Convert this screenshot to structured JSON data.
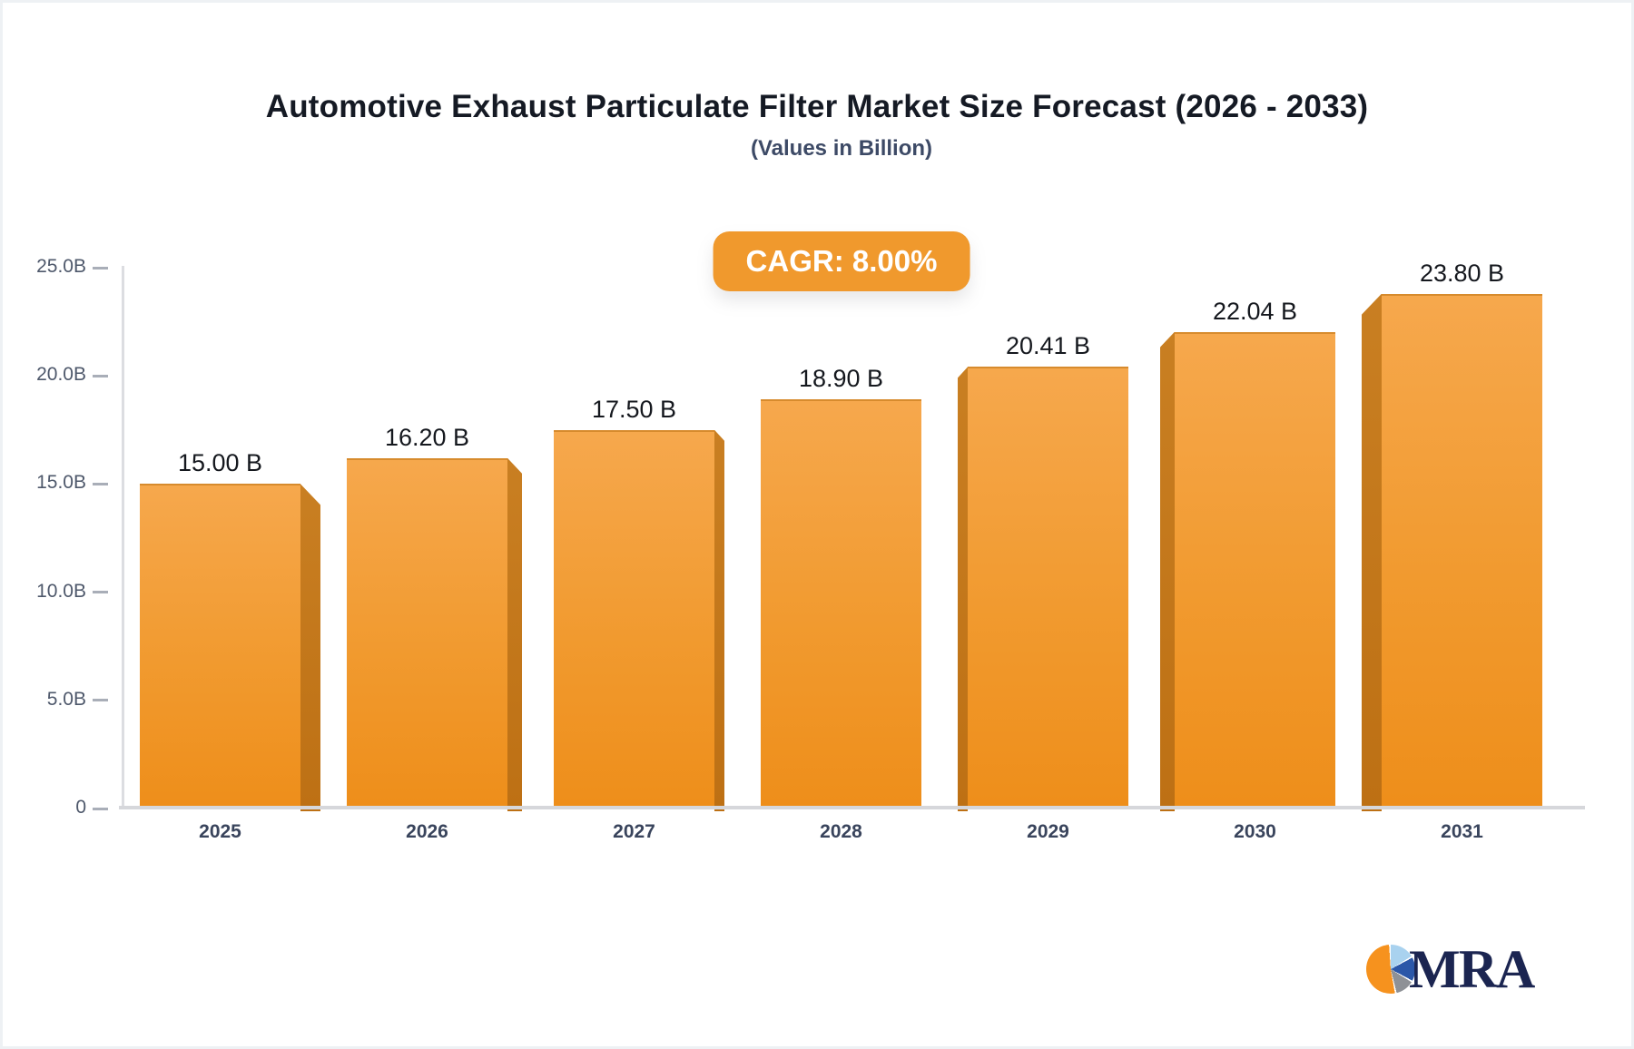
{
  "title": "Automotive Exhaust Particulate Filter Market Size Forecast (2026 - 2033)",
  "subtitle": "(Values in Billion)",
  "badge": {
    "label": "CAGR: 8.00%"
  },
  "logo": {
    "text": "MRA",
    "pie_colors": [
      "#f6921e",
      "#a9d2ef",
      "#2b57a8",
      "#8e9196"
    ]
  },
  "colors": {
    "accent_orange": "#F0992D",
    "bar_face_top": "#f6a84d",
    "bar_face_bottom": "#ee8e1a",
    "bar_side": "#c1771b",
    "title_text": "#151a24",
    "subtitle_text": "#3d4a66",
    "axis_text": "#4e586b",
    "category_text": "#39445c",
    "axis_line": "#d6d7db"
  },
  "chart_data": {
    "type": "bar",
    "title": "Automotive Exhaust Particulate Filter Market Size Forecast (2026 - 2033)",
    "subtitle": "(Values in Billion)",
    "annotation": "CAGR: 8.00%",
    "categories": [
      "2025",
      "2026",
      "2027",
      "2028",
      "2029",
      "2030",
      "2031"
    ],
    "values": [
      15.0,
      16.2,
      17.5,
      18.9,
      20.41,
      22.04,
      23.8
    ],
    "bar_labels": [
      "15.00 B",
      "16.20 B",
      "17.50 B",
      "18.90 B",
      "20.41 B",
      "22.04 B",
      "23.80 B"
    ],
    "xlabel": "",
    "ylabel": "",
    "ylim": [
      0,
      25
    ],
    "yticks": [
      0,
      5,
      10,
      15,
      20,
      25
    ],
    "ytick_labels": [
      "0",
      "5.0B",
      "10.0B",
      "15.0B",
      "20.0B",
      "25.0B"
    ],
    "grid": false,
    "legend": null,
    "style": "pseudo-3d columns, orange, side shading facing away from center"
  }
}
